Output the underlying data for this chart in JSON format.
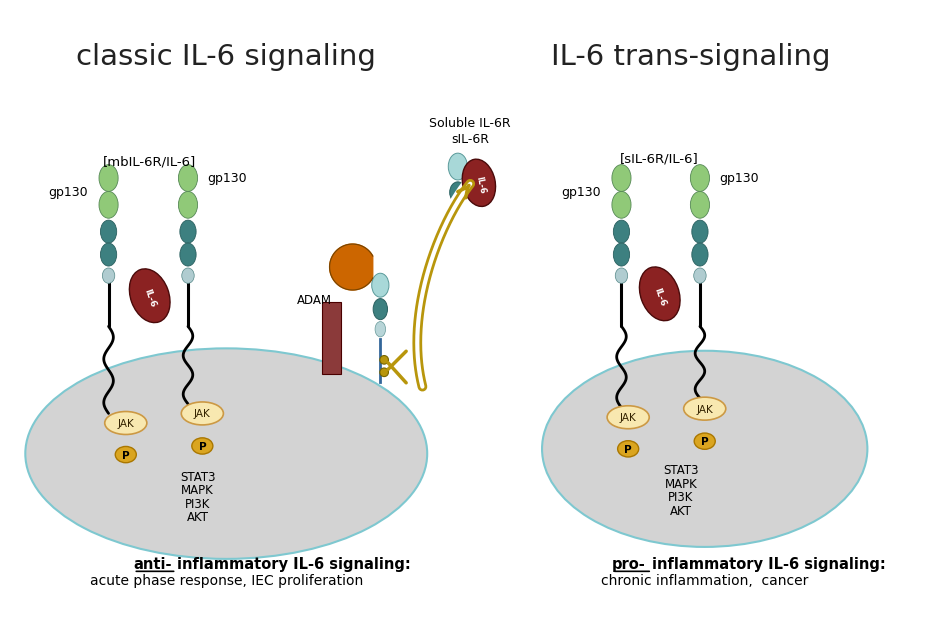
{
  "title_left": "classic IL-6 signaling",
  "title_right": "IL-6 trans-signaling",
  "bg_color": "#ffffff",
  "cell_color": "#d3d3d3",
  "cell_edge_color": "#7ec8d0",
  "green_light": "#90c978",
  "teal": "#3d8080",
  "il6_color": "#8b2222",
  "adam_color": "#cc6600",
  "adam_body": "#8b3a3a",
  "scissors_color": "#b8960c",
  "arrow_color": "#b8960c",
  "bottom_label_left2": "acute phase response, IEC proliferation",
  "bottom_label_right2": "chronic inflammation,  cancer",
  "label_mbiL6R": "[mbIL-6R/IL-6]",
  "label_sIL6R_top": "Soluble IL-6R",
  "label_sIL6R2": "sIL-6R",
  "label_adam": "ADAM",
  "label_sIL6R_right": "[sIL-6R/IL-6]",
  "label_gp130": "gp130",
  "signaling_list": [
    "STAT3",
    "MAPK",
    "PI3K",
    "AKT"
  ]
}
